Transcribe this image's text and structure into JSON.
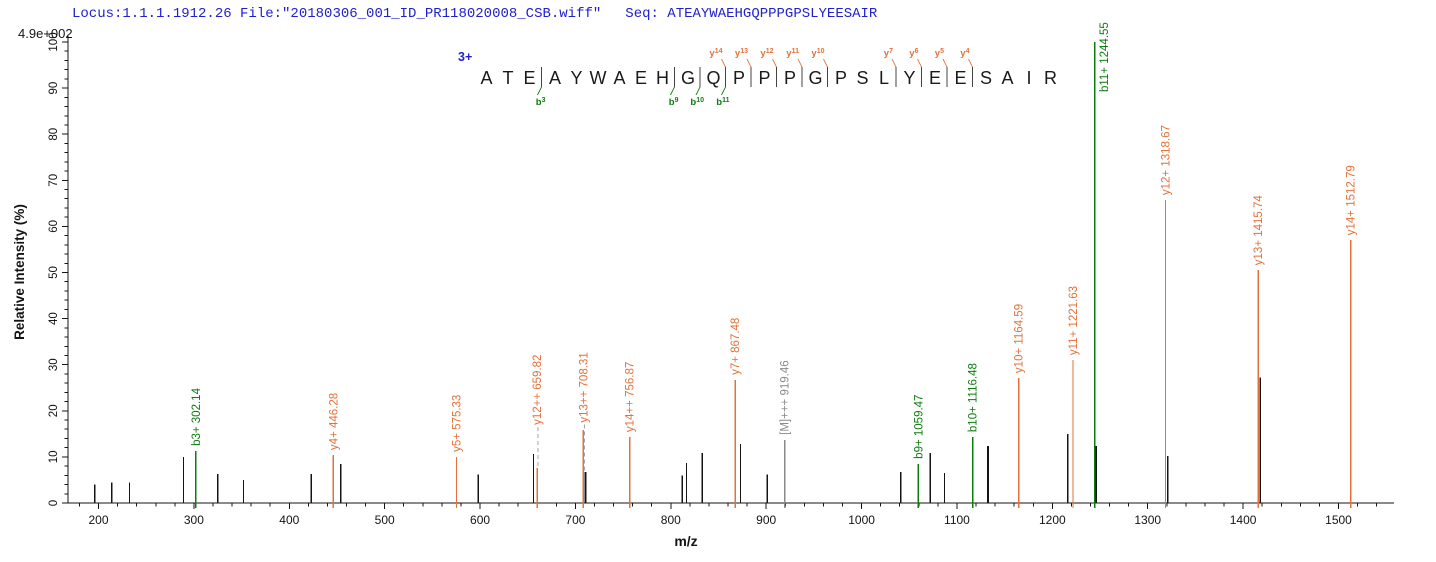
{
  "header": {
    "locus_file": "Locus:1.1.1.1912.26 File:\"20180306_001_ID_PR118020008_CSB.wiff\"",
    "seq": "Seq: ATEAYWAEHGQPPPGPSLYEESAIR"
  },
  "chart_data": {
    "type": "bar",
    "subtype": "ms2-fragmentation-stick-spectrum",
    "title": "",
    "xlabel": "m/z",
    "ylabel": "Relative  Intensity (%)",
    "scale_label": "4.9e+002",
    "precursor_charge": "3+",
    "sequence": "ATEAYWAEHGQPPPGPSLYEESAIR",
    "xlim": [
      168,
      1554
    ],
    "ylim": [
      0,
      100
    ],
    "x_major_ticks": [
      200,
      300,
      400,
      500,
      600,
      700,
      800,
      900,
      1000,
      1100,
      1200,
      1300,
      1400,
      1500
    ],
    "x_minor_step": 20,
    "y_major_step": 10,
    "y_minor_step": 2,
    "grid": false,
    "legend": null,
    "colors": {
      "y_ion": "#e2713a",
      "b_ion": "#0e7c0e",
      "precursor": "#8a8a8a",
      "peak": "#141414",
      "axis": "#141414",
      "header_text": "#2121cc",
      "dash": "#a6a6a6",
      "divider": "#444444"
    },
    "y_ion_sites": [
      {
        "label": "y14",
        "after_residue": 11
      },
      {
        "label": "y13",
        "after_residue": 12
      },
      {
        "label": "y12",
        "after_residue": 13
      },
      {
        "label": "y11",
        "after_residue": 14
      },
      {
        "label": "y10",
        "after_residue": 15
      },
      {
        "label": "y7",
        "after_residue": 18
      },
      {
        "label": "y6",
        "after_residue": 19
      },
      {
        "label": "y5",
        "after_residue": 20
      },
      {
        "label": "y4",
        "after_residue": 21
      }
    ],
    "b_ion_sites": [
      {
        "label": "b3",
        "after_residue": 3
      },
      {
        "label": "b9",
        "after_residue": 9
      },
      {
        "label": "b10",
        "after_residue": 10
      },
      {
        "label": "b11",
        "after_residue": 11
      }
    ],
    "annotated_peaks": [
      {
        "label": "b3+ 302.14",
        "mz": 302.14,
        "intensity": 11.3,
        "series": "b"
      },
      {
        "label": "y4+ 446.28",
        "mz": 446.28,
        "intensity": 10.4,
        "series": "y"
      },
      {
        "label": "y5+ 575.33",
        "mz": 575.33,
        "intensity": 10.0,
        "series": "y"
      },
      {
        "label": "y12++ 659.82",
        "mz": 659.82,
        "intensity": 7.6,
        "series": "y",
        "label_at_intensity": 16.5,
        "dash_to_intensity": 8.0
      },
      {
        "label": "y13++ 708.31",
        "mz": 708.31,
        "intensity": 15.8,
        "series": "y",
        "label_at_intensity": 17.0,
        "dash_to_intensity": 7.0
      },
      {
        "label": "y14++ 756.87",
        "mz": 756.87,
        "intensity": 14.3,
        "series": "y"
      },
      {
        "label": "y7+ 867.48",
        "mz": 867.48,
        "intensity": 26.7,
        "series": "y"
      },
      {
        "label": "[M]+++ 919.46",
        "mz": 919.46,
        "intensity": 13.7,
        "series": "precursor"
      },
      {
        "label": "b9+ 1059.47",
        "mz": 1059.47,
        "intensity": 8.5,
        "series": "b"
      },
      {
        "label": "b10+ 1116.48",
        "mz": 1116.48,
        "intensity": 14.3,
        "series": "b"
      },
      {
        "label": "y10+ 1164.59",
        "mz": 1164.59,
        "intensity": 27.1,
        "series": "y"
      },
      {
        "label": "y11+ 1221.63",
        "mz": 1221.63,
        "intensity": 31.0,
        "series": "y"
      },
      {
        "label": "b11+ 1244.55",
        "mz": 1244.55,
        "intensity": 100,
        "series": "b",
        "label_beside": true
      },
      {
        "label": "y12+ 1318.67",
        "mz": 1318.67,
        "intensity": 65.7,
        "series": "y"
      },
      {
        "label": "y13+ 1415.74",
        "mz": 1415.74,
        "intensity": 50.5,
        "series": "y"
      },
      {
        "label": "y14+ 1512.79",
        "mz": 1512.79,
        "intensity": 57.0,
        "series": "y"
      }
    ],
    "unlabeled_peaks": [
      {
        "mz": 196,
        "intensity": 4.0
      },
      {
        "mz": 214,
        "intensity": 4.5
      },
      {
        "mz": 232.5,
        "intensity": 4.5
      },
      {
        "mz": 289,
        "intensity": 10.0
      },
      {
        "mz": 325,
        "intensity": 6.3
      },
      {
        "mz": 352,
        "intensity": 5.0
      },
      {
        "mz": 423,
        "intensity": 6.3
      },
      {
        "mz": 454,
        "intensity": 8.5
      },
      {
        "mz": 598,
        "intensity": 6.2
      },
      {
        "mz": 656,
        "intensity": 10.6
      },
      {
        "mz": 710.5,
        "intensity": 6.7,
        "w": 2.2
      },
      {
        "mz": 812,
        "intensity": 6.0
      },
      {
        "mz": 816.5,
        "intensity": 8.7
      },
      {
        "mz": 833,
        "intensity": 10.8
      },
      {
        "mz": 873,
        "intensity": 12.8
      },
      {
        "mz": 901,
        "intensity": 6.2
      },
      {
        "mz": 1041,
        "intensity": 6.7
      },
      {
        "mz": 1072,
        "intensity": 10.8
      },
      {
        "mz": 1087,
        "intensity": 6.5
      },
      {
        "mz": 1132.5,
        "intensity": 12.4,
        "w": 2.4
      },
      {
        "mz": 1216,
        "intensity": 15.0
      },
      {
        "mz": 1246,
        "intensity": 12.4,
        "w": 1.8
      },
      {
        "mz": 1321,
        "intensity": 10.2
      },
      {
        "mz": 1418,
        "intensity": 27.2,
        "w": 1.8
      }
    ]
  }
}
